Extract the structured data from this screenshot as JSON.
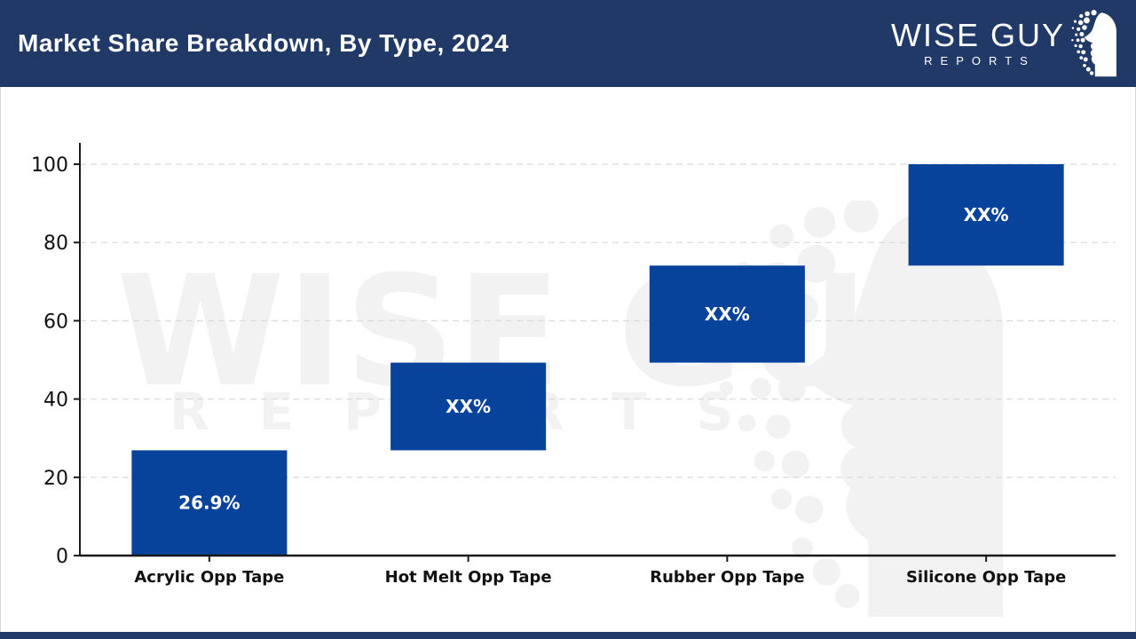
{
  "header": {
    "title": "Market Share Breakdown, By Type, 2024",
    "bg_color": "#213966",
    "brand": {
      "line1": "WISE GUY",
      "line2": "REPORTS"
    }
  },
  "watermark": {
    "line1": "WISE GUY",
    "line2": "REPORTS"
  },
  "chart_data": {
    "type": "bar",
    "subtype": "waterfall-floating-bars",
    "title": "Market Share Breakdown, By Type, 2024",
    "xlabel": "",
    "ylabel": "",
    "categories": [
      "Acrylic Opp Tape",
      "Hot Melt Opp Tape",
      "Rubber Opp Tape",
      "Silicone Opp Tape"
    ],
    "segments": [
      {
        "category": "Acrylic Opp Tape",
        "start": 0,
        "end": 26.9,
        "label": "26.9%"
      },
      {
        "category": "Hot Melt Opp Tape",
        "start": 26.9,
        "end": 49.3,
        "label": "XX%"
      },
      {
        "category": "Rubber Opp Tape",
        "start": 49.3,
        "end": 74.1,
        "label": "XX%"
      },
      {
        "category": "Silicone Opp Tape",
        "start": 74.1,
        "end": 100,
        "label": "XX%"
      }
    ],
    "yticks": [
      0,
      20,
      40,
      60,
      80,
      100
    ],
    "ylim": [
      0,
      105
    ],
    "grid": "horizontal-dashed",
    "legend": "none",
    "bar_color": "#07429b",
    "bar_label_color": "#ffffff"
  },
  "footer": {
    "bg_color": "#213966"
  }
}
